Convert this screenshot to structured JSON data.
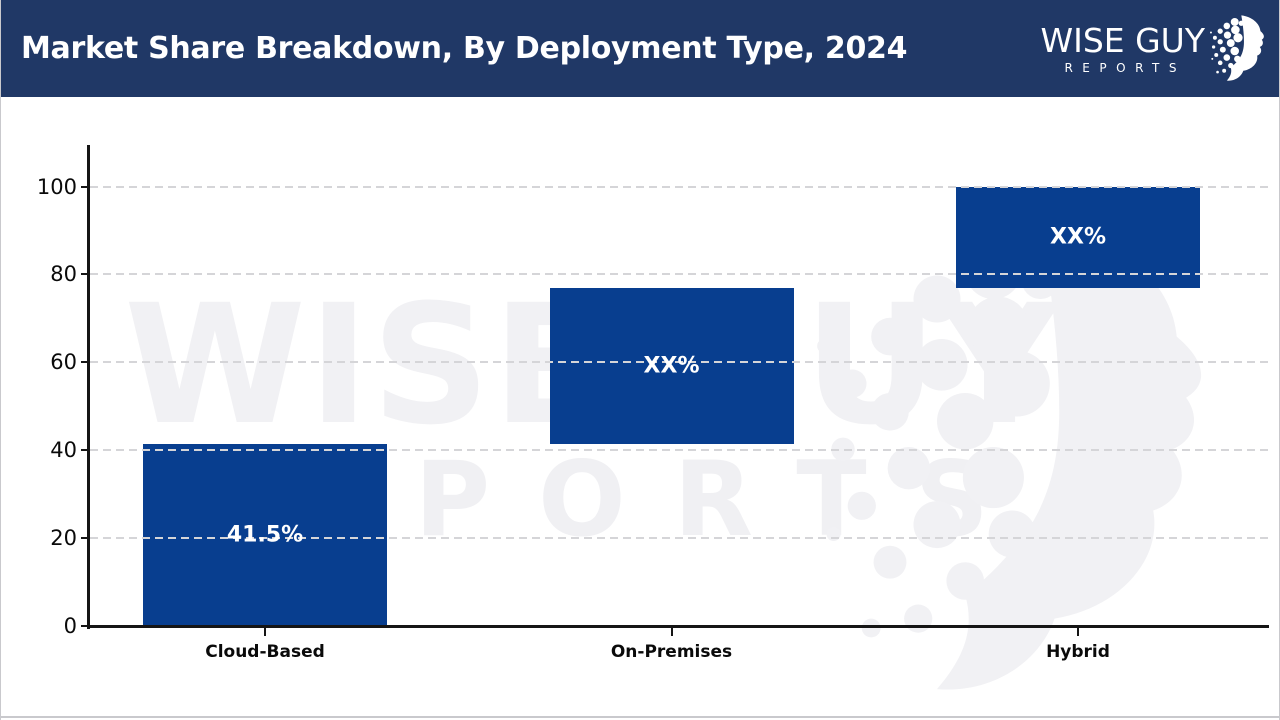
{
  "header": {
    "title": "Market Share Breakdown, By Deployment Type, 2024",
    "logo": {
      "line1": "WISE GUY",
      "line2": "REPORTS",
      "icon": "dotted-face-profile-icon"
    }
  },
  "watermark": {
    "line1": "WISE GUY",
    "line2": "REPORTS",
    "icon": "dotted-face-profile-watermark"
  },
  "colors": {
    "header_bg": "#203866",
    "bar_fill": "#083e8f",
    "gridline": "#d5d5d8",
    "axis": "#151515",
    "bar_label_text": "#ffffff",
    "watermark": "#f1f1f4"
  },
  "chart_data": {
    "type": "bar",
    "variant": "waterfall-stacked-percent",
    "title": "Market Share Breakdown, By Deployment Type, 2024",
    "categories": [
      "Cloud-Based",
      "On-Premises",
      "Hybrid"
    ],
    "bars": [
      {
        "category": "Cloud-Based",
        "start": 0,
        "end": 41.5,
        "label": "41.5%"
      },
      {
        "category": "On-Premises",
        "start": 41.5,
        "end": 77,
        "label": "XX%"
      },
      {
        "category": "Hybrid",
        "start": 77,
        "end": 100,
        "label": "XX%"
      }
    ],
    "xlabel": "",
    "ylabel": "",
    "yticks": [
      0,
      20,
      40,
      60,
      80,
      100
    ],
    "ylim": [
      0,
      100
    ],
    "grid": "horizontal-dashed, drawn over bars",
    "legend": false
  }
}
